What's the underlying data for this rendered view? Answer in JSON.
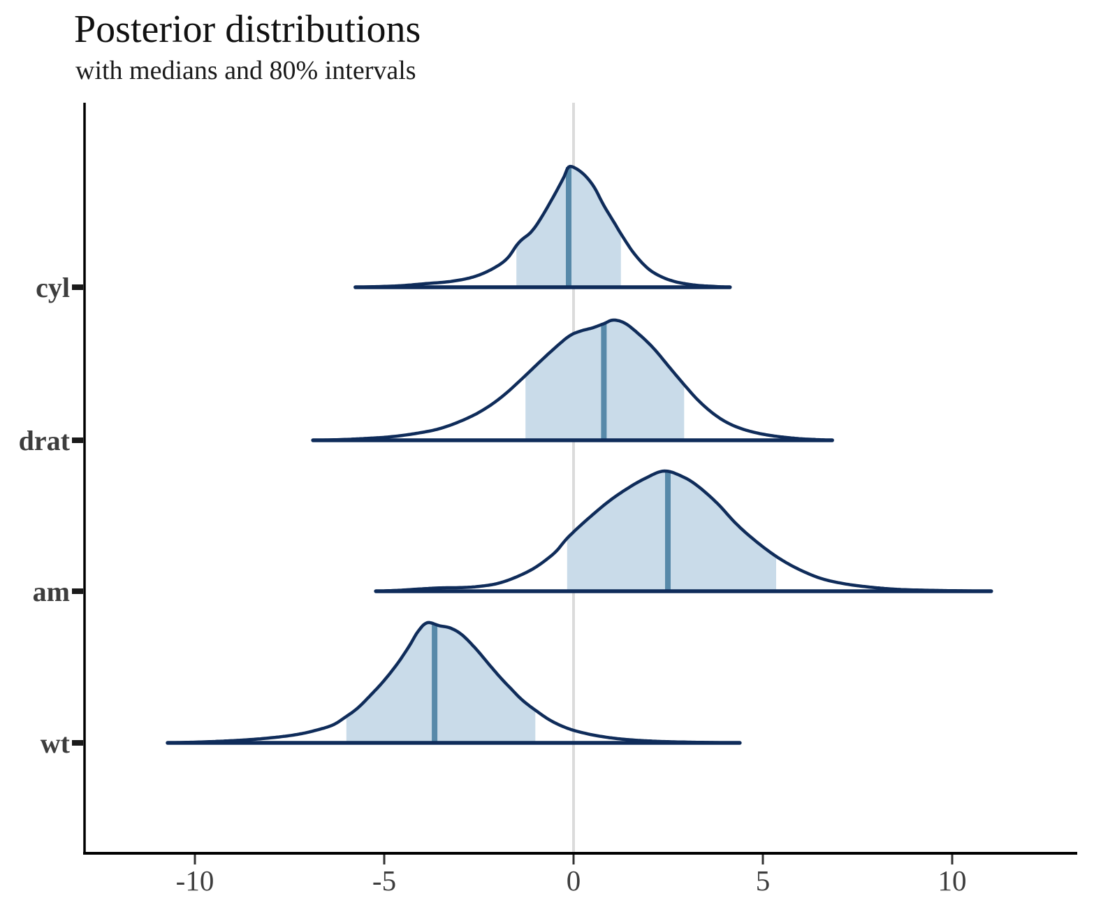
{
  "header": {
    "title": "Posterior distributions",
    "subtitle": "with medians and 80% intervals"
  },
  "chart_data": {
    "type": "area",
    "variant": "posterior-density-ridges",
    "title": "Posterior distributions",
    "subtitle": "with medians and 80% intervals",
    "point_estimate": "median",
    "interval_probability": 0.8,
    "reference_line_x": 0,
    "grid": "off",
    "legend": "none",
    "x_axis": {
      "ticks": [
        -10,
        -5,
        0,
        5,
        10
      ],
      "tick_labels": [
        "-10",
        "-5",
        "0",
        "5",
        "10"
      ],
      "lim": [
        -12.9,
        13.3
      ]
    },
    "y_axis": {
      "categories": [
        "cyl",
        "drat",
        "am",
        "wt"
      ]
    },
    "colors": {
      "outline": "#0f2c5a",
      "interval_fill": "#c9dbe9",
      "median_line": "#5789a9",
      "reference_line": "#dbdbdb",
      "axis": "#000000",
      "tick": "#333333",
      "label": "#3d3d3d"
    },
    "series": [
      {
        "name": "cyl",
        "median": -0.13,
        "interval_80": [
          -1.51,
          1.25
        ],
        "range": [
          -5.76,
          4.13
        ],
        "density": [
          [
            -5.76,
            0
          ],
          [
            -5.2,
            0.005
          ],
          [
            -4.6,
            0.012
          ],
          [
            -3.9,
            0.03
          ],
          [
            -3.2,
            0.05
          ],
          [
            -2.6,
            0.09
          ],
          [
            -2.1,
            0.16
          ],
          [
            -1.75,
            0.24
          ],
          [
            -1.5,
            0.35
          ],
          [
            -1.35,
            0.4
          ],
          [
            -1.15,
            0.45
          ],
          [
            -0.95,
            0.53
          ],
          [
            -0.7,
            0.66
          ],
          [
            -0.45,
            0.8
          ],
          [
            -0.25,
            0.92
          ],
          [
            -0.13,
            1.0
          ],
          [
            0.05,
            0.99
          ],
          [
            0.3,
            0.93
          ],
          [
            0.55,
            0.83
          ],
          [
            0.8,
            0.68
          ],
          [
            1.05,
            0.55
          ],
          [
            1.3,
            0.42
          ],
          [
            1.6,
            0.28
          ],
          [
            1.95,
            0.16
          ],
          [
            2.3,
            0.09
          ],
          [
            2.7,
            0.045
          ],
          [
            3.2,
            0.018
          ],
          [
            3.7,
            0.007
          ],
          [
            4.13,
            0
          ]
        ]
      },
      {
        "name": "drat",
        "median": 0.8,
        "interval_80": [
          -1.27,
          2.92
        ],
        "range": [
          -6.88,
          6.83
        ],
        "density": [
          [
            -6.88,
            0
          ],
          [
            -6.2,
            0.005
          ],
          [
            -5.5,
            0.015
          ],
          [
            -4.8,
            0.03
          ],
          [
            -4.1,
            0.06
          ],
          [
            -3.5,
            0.1
          ],
          [
            -2.9,
            0.17
          ],
          [
            -2.4,
            0.25
          ],
          [
            -1.9,
            0.36
          ],
          [
            -1.4,
            0.5
          ],
          [
            -0.9,
            0.65
          ],
          [
            -0.45,
            0.78
          ],
          [
            -0.1,
            0.87
          ],
          [
            0.2,
            0.91
          ],
          [
            0.5,
            0.935
          ],
          [
            0.8,
            0.97
          ],
          [
            1.05,
            1.0
          ],
          [
            1.35,
            0.975
          ],
          [
            1.7,
            0.89
          ],
          [
            2.1,
            0.77
          ],
          [
            2.5,
            0.62
          ],
          [
            2.9,
            0.47
          ],
          [
            3.3,
            0.33
          ],
          [
            3.7,
            0.22
          ],
          [
            4.1,
            0.14
          ],
          [
            4.6,
            0.08
          ],
          [
            5.2,
            0.04
          ],
          [
            5.9,
            0.015
          ],
          [
            6.4,
            0.006
          ],
          [
            6.83,
            0
          ]
        ]
      },
      {
        "name": "am",
        "median": 2.49,
        "interval_80": [
          -0.17,
          5.35
        ],
        "range": [
          -5.22,
          11.03
        ],
        "density": [
          [
            -5.22,
            0
          ],
          [
            -4.6,
            0.008
          ],
          [
            -4.0,
            0.02
          ],
          [
            -3.5,
            0.028
          ],
          [
            -3.0,
            0.03
          ],
          [
            -2.5,
            0.04
          ],
          [
            -2.0,
            0.065
          ],
          [
            -1.5,
            0.12
          ],
          [
            -1.0,
            0.2
          ],
          [
            -0.5,
            0.32
          ],
          [
            -0.17,
            0.44
          ],
          [
            0.3,
            0.58
          ],
          [
            0.9,
            0.74
          ],
          [
            1.4,
            0.85
          ],
          [
            1.9,
            0.94
          ],
          [
            2.4,
            1.0
          ],
          [
            2.9,
            0.95
          ],
          [
            3.3,
            0.87
          ],
          [
            3.8,
            0.73
          ],
          [
            4.3,
            0.56
          ],
          [
            4.8,
            0.42
          ],
          [
            5.35,
            0.29
          ],
          [
            5.9,
            0.19
          ],
          [
            6.5,
            0.11
          ],
          [
            7.1,
            0.065
          ],
          [
            7.8,
            0.035
          ],
          [
            8.6,
            0.015
          ],
          [
            9.5,
            0.007
          ],
          [
            10.3,
            0.003
          ],
          [
            11.03,
            0
          ]
        ]
      },
      {
        "name": "wt",
        "median": -3.67,
        "interval_80": [
          -6.0,
          -1.01
        ],
        "range": [
          -10.72,
          4.39
        ],
        "density": [
          [
            -10.72,
            0
          ],
          [
            -10.0,
            0.006
          ],
          [
            -9.3,
            0.014
          ],
          [
            -8.6,
            0.026
          ],
          [
            -7.9,
            0.045
          ],
          [
            -7.3,
            0.07
          ],
          [
            -6.8,
            0.105
          ],
          [
            -6.35,
            0.15
          ],
          [
            -6.0,
            0.22
          ],
          [
            -5.7,
            0.29
          ],
          [
            -5.35,
            0.4
          ],
          [
            -5.0,
            0.52
          ],
          [
            -4.65,
            0.66
          ],
          [
            -4.35,
            0.8
          ],
          [
            -4.1,
            0.93
          ],
          [
            -3.86,
            1.0
          ],
          [
            -3.55,
            0.975
          ],
          [
            -3.25,
            0.955
          ],
          [
            -2.95,
            0.9
          ],
          [
            -2.6,
            0.79
          ],
          [
            -2.25,
            0.66
          ],
          [
            -1.95,
            0.55
          ],
          [
            -1.65,
            0.45
          ],
          [
            -1.35,
            0.355
          ],
          [
            -1.0,
            0.27
          ],
          [
            -0.6,
            0.185
          ],
          [
            -0.15,
            0.12
          ],
          [
            0.3,
            0.08
          ],
          [
            0.8,
            0.05
          ],
          [
            1.4,
            0.028
          ],
          [
            2.2,
            0.013
          ],
          [
            3.2,
            0.005
          ],
          [
            4.39,
            0
          ]
        ]
      }
    ]
  }
}
